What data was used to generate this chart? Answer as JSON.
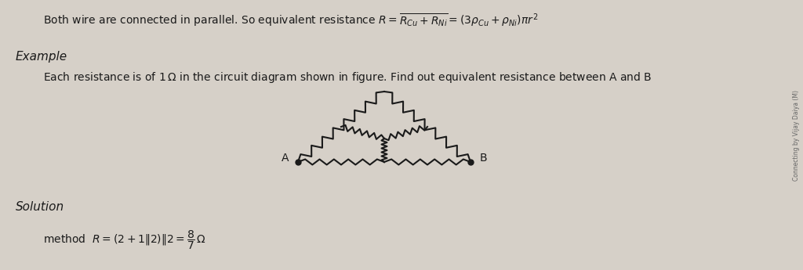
{
  "bg_color": "#d6d0c8",
  "text_color": "#1a1a1a",
  "example_label": "Example",
  "example_text": "Each resistance is of $1\\,\\Omega$ in the circuit diagram shown in figure. Find out equivalent resistance between A and B",
  "solution_label": "Solution",
  "watermark": "Connecting by Vijay Daiya (M)",
  "col": "#1a1a1a",
  "lw": 1.5
}
